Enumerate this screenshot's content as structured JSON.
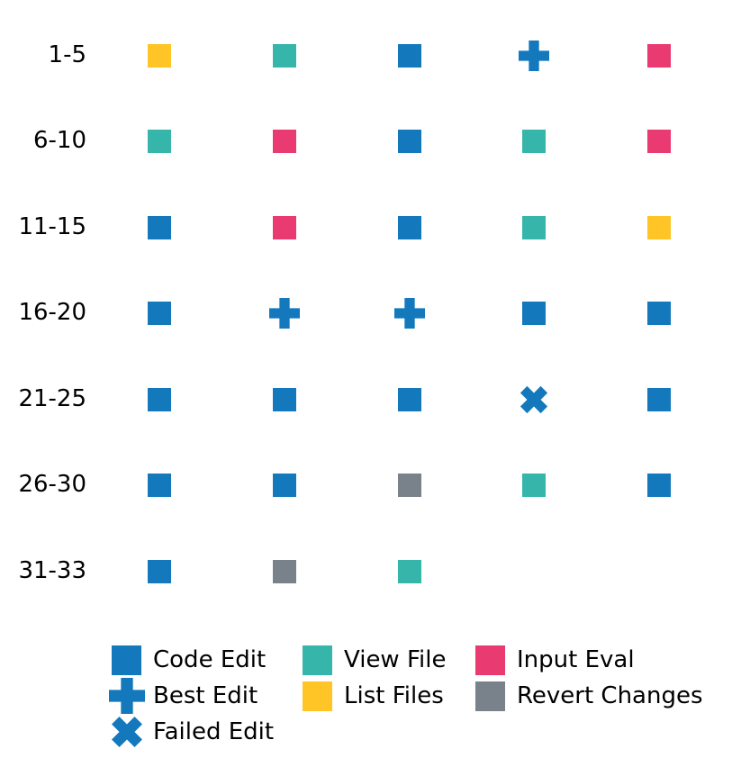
{
  "palette": {
    "blue": "#1379BC",
    "teal": "#36B6AB",
    "pink": "#E93A71",
    "yellow": "#FFC426",
    "gray": "#79818A"
  },
  "chart_data": {
    "type": "scatter",
    "title": "",
    "xlabel": "",
    "ylabel": "",
    "grid": false,
    "legend_position": "bottom",
    "row_labels": [
      "1-5",
      "6-10",
      "11-15",
      "16-20",
      "21-25",
      "26-30",
      "31-33"
    ],
    "columns_per_row": 5,
    "cells": [
      [
        "List Files",
        "View File",
        "Code Edit",
        "Best Edit",
        "Input Eval"
      ],
      [
        "View File",
        "Input Eval",
        "Code Edit",
        "View File",
        "Input Eval"
      ],
      [
        "Code Edit",
        "Input Eval",
        "Code Edit",
        "View File",
        "List Files"
      ],
      [
        "Code Edit",
        "Best Edit",
        "Best Edit",
        "Code Edit",
        "Code Edit"
      ],
      [
        "Code Edit",
        "Code Edit",
        "Code Edit",
        "Failed Edit",
        "Code Edit"
      ],
      [
        "Code Edit",
        "Code Edit",
        "Revert Changes",
        "View File",
        "Code Edit"
      ],
      [
        "Code Edit",
        "Revert Changes",
        "View File",
        null,
        null
      ]
    ],
    "marker_map": {
      "Code Edit": {
        "marker": "square",
        "color": "#1379BC"
      },
      "View File": {
        "marker": "square",
        "color": "#36B6AB"
      },
      "Input Eval": {
        "marker": "square",
        "color": "#E93A71"
      },
      "List Files": {
        "marker": "square",
        "color": "#FFC426"
      },
      "Revert Changes": {
        "marker": "square",
        "color": "#79818A"
      },
      "Best Edit": {
        "marker": "plus",
        "color": "#1379BC"
      },
      "Failed Edit": {
        "marker": "x",
        "color": "#1379BC"
      }
    },
    "legend": [
      {
        "label": "Code Edit",
        "marker": "square",
        "color": "#1379BC"
      },
      {
        "label": "View File",
        "marker": "square",
        "color": "#36B6AB"
      },
      {
        "label": "Input Eval",
        "marker": "square",
        "color": "#E93A71"
      },
      {
        "label": "Best Edit",
        "marker": "plus",
        "color": "#1379BC"
      },
      {
        "label": "List Files",
        "marker": "square",
        "color": "#FFC426"
      },
      {
        "label": "Revert Changes",
        "marker": "square",
        "color": "#79818A"
      },
      {
        "label": "Failed Edit",
        "marker": "x",
        "color": "#1379BC"
      }
    ]
  }
}
